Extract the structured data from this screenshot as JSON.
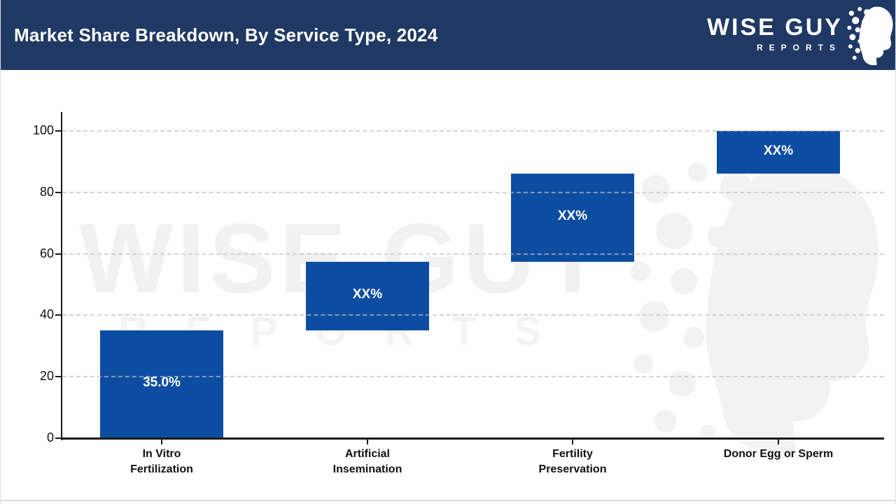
{
  "header": {
    "title": "Market Share Breakdown, By Service Type, 2024",
    "brand_line1": "WISE GUY",
    "brand_line2": "REPORTS",
    "bg_color": "#1f3864"
  },
  "watermark": {
    "line1": "WISE GUY",
    "line2": "REPORTS",
    "face_icon": "dotted-head-profile"
  },
  "chart_data": {
    "type": "bar",
    "subtype": "waterfall",
    "title": "Market Share Breakdown, By Service Type, 2024",
    "categories": [
      "In Vitro Fertilization",
      "Artificial Insemination",
      "Fertility Preservation",
      "Donor Egg or Sperm"
    ],
    "category_lines": [
      [
        "In Vitro",
        "Fertilization"
      ],
      [
        "Artificial",
        "Insemination"
      ],
      [
        "Fertility",
        "Preservation"
      ],
      [
        "Donor Egg or Sperm"
      ]
    ],
    "segments": [
      {
        "category": "In Vitro Fertilization",
        "start": 0,
        "end": 35,
        "label": "35.0%"
      },
      {
        "category": "Artificial Insemination",
        "start": 35,
        "end": 57.5,
        "label": "XX%"
      },
      {
        "category": "Fertility Preservation",
        "start": 57.5,
        "end": 86,
        "label": "XX%"
      },
      {
        "category": "Donor Egg or Sperm",
        "start": 86,
        "end": 100,
        "label": "XX%"
      }
    ],
    "xlabel": "",
    "ylabel": "",
    "ylim": [
      0,
      105
    ],
    "yticks": [
      0,
      20,
      40,
      60,
      80,
      100
    ],
    "grid": "horizontal dashed, drawn over bars",
    "legend": "none",
    "bar_color": "#0c4da2",
    "bar_label_color": "#ffffff",
    "axis_color": "#1a1a1a"
  },
  "colors": {
    "header_bg": "#1f3864",
    "bar_blue": "#0c4da2",
    "watermark_gray": "#f1f1f1",
    "grid_gray": "#bfbfbf",
    "footer_hairline": "#d9d9d9"
  }
}
